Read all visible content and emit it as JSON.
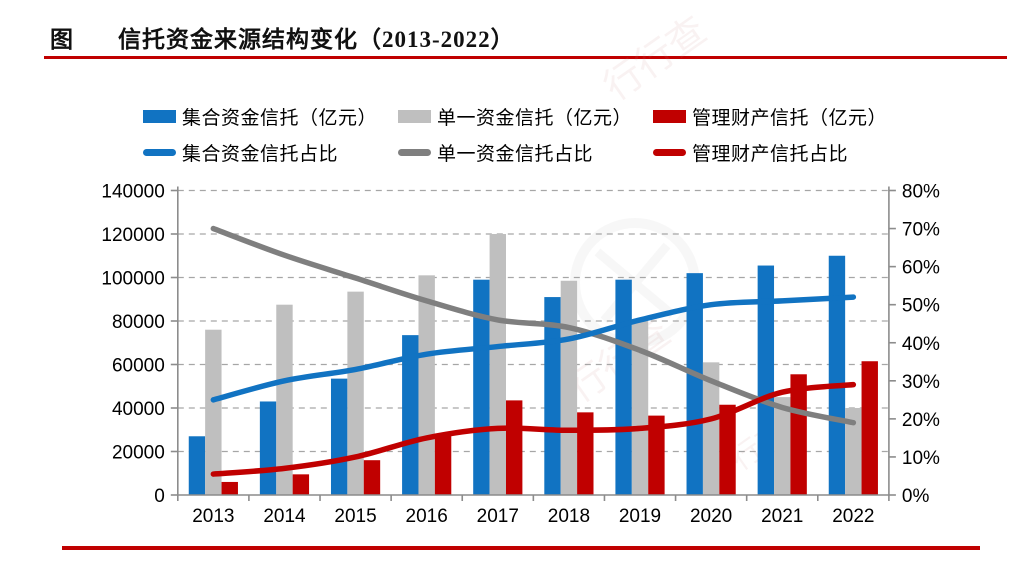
{
  "title": {
    "prefix": "图",
    "text": "信托资金来源结构变化（2013-2022）"
  },
  "rules": {
    "color": "#c00000"
  },
  "legend": {
    "bars": [
      {
        "label": "集合资金信托（亿元）"
      },
      {
        "label": "单一资金信托（亿元）"
      },
      {
        "label": "管理财产信托（亿元）"
      }
    ],
    "lines": [
      {
        "label": "集合资金信托占比"
      },
      {
        "label": "单一资金信托占比"
      },
      {
        "label": "管理财产信托占比"
      }
    ]
  },
  "watermark": {
    "text": "行行查"
  },
  "chart_data": {
    "type": "bar+line combo (bars on left axis 亿元, lines on right axis %)",
    "title": "信托资金来源结构变化（2013-2022）",
    "categories": [
      "2013",
      "2014",
      "2015",
      "2016",
      "2017",
      "2018",
      "2019",
      "2020",
      "2021",
      "2022"
    ],
    "bar_series": [
      {
        "key": "collective",
        "name": "集合资金信托（亿元）",
        "axis": "left",
        "color": "#1173c2",
        "values": [
          27000,
          43000,
          53500,
          73500,
          99000,
          91000,
          99000,
          102000,
          105500,
          110000
        ]
      },
      {
        "key": "single",
        "name": "单一资金信托（亿元）",
        "axis": "left",
        "color": "#bfbfbf",
        "values": [
          76000,
          87500,
          93500,
          101000,
          120000,
          98500,
          80000,
          61000,
          45000,
          40000
        ]
      },
      {
        "key": "property",
        "name": "管理财产信托（亿元）",
        "axis": "left",
        "color": "#c00000",
        "values": [
          6000,
          9500,
          16000,
          27500,
          43500,
          38000,
          36500,
          41500,
          55500,
          61500
        ]
      }
    ],
    "line_series": [
      {
        "key": "single-ratio",
        "name": "单一资金信托占比",
        "axis": "right",
        "color": "#7f7f7f",
        "values": [
          70,
          63,
          57,
          51,
          46,
          44,
          38,
          30,
          23,
          19
        ]
      },
      {
        "key": "property-ratio",
        "name": "管理财产信托占比",
        "axis": "right",
        "color": "#c00000",
        "values": [
          5.5,
          7,
          10,
          15,
          17.5,
          17,
          17.5,
          20,
          27,
          29
        ]
      },
      {
        "key": "collective-ratio",
        "name": "集合资金信托占比",
        "axis": "right",
        "color": "#1173c2",
        "values": [
          25,
          30,
          33,
          37,
          39,
          41,
          46,
          50,
          51,
          52
        ]
      }
    ],
    "left_axis": {
      "min": 0,
      "max": 140000,
      "step": 20000,
      "tick_labels": [
        "0",
        "20000",
        "40000",
        "60000",
        "80000",
        "100000",
        "120000",
        "140000"
      ]
    },
    "right_axis": {
      "min": 0,
      "max": 80,
      "step": 10,
      "tick_labels": [
        "0%",
        "10%",
        "20%",
        "30%",
        "40%",
        "50%",
        "60%",
        "70%",
        "80%"
      ]
    },
    "grid": "horizontal dashed lines at every 20000",
    "legend_position": "top, two rows",
    "colors": {
      "grid": "#a6a6a6",
      "axis": "#8c8c8c",
      "text": "#000000"
    }
  }
}
